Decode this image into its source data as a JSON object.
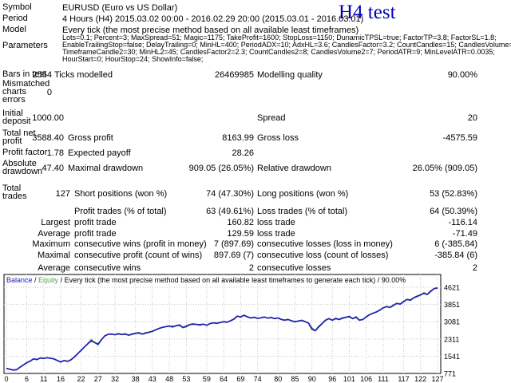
{
  "title": "H4 test",
  "header": {
    "symbol_label": "Symbol",
    "symbol": "EURUSD (Euro vs US Dollar)",
    "period_label": "Period",
    "period": "4 Hours (H4) 2015.03.02 00:00 - 2016.02.29 20:00 (2015.03.01 - 2016.03.01)",
    "model_label": "Model",
    "model": "Every tick (the most precise method based on all available least timeframes)",
    "parameters_label": "Parameters",
    "parameters_lines": [
      "Lots=0.1; Percent=3; MaxSpread=51; Magic=1175; TakeProfit=1600; StopLoss=1150; DunamicTPSL=true; FactorTP=3.8; FactorSL=1.8;",
      "EnableTrailingStop=false; DelayTrailing=0; MinHL=400; PeriodADX=10; AdxHL=3.6; CandlesFactor=3.2; CountCandles=15; CandlesVolume=7;",
      "TimeframeCandle2=30; MinHL2=45; CandlesFactor2=2.3; CountCandles2=8; CandlesVolume2=7; PeriodATR=9; MinLevelATR=0.0035;",
      "HourStart=0; HourStop=24; ShowInfo=false;"
    ]
  },
  "stats": {
    "bars": {
      "label": "Bars in test",
      "v1": "2554",
      "l2": "Ticks modelled",
      "v2": "26469985",
      "l3": "Modelling quality",
      "v3": "90.00%"
    },
    "mismatched": {
      "label": "Mismatched\ncharts\nerrors",
      "v1": "0"
    },
    "initial": {
      "label": "Initial\ndeposit",
      "v1": "1000.00",
      "l3": "Spread",
      "v3": "20"
    },
    "netprofit": {
      "label": "Total net\nprofit",
      "v1": "3588.40",
      "l2": "Gross profit",
      "v2": "8163.99",
      "l3": "Gross loss",
      "v3": "-4575.59"
    },
    "pfactor": {
      "label": "Profit factor",
      "v1": "1.78",
      "l2": "Expected payoff",
      "v2": "28.26"
    },
    "absdd": {
      "label": "Absolute\ndrawdown",
      "v1": "47.40",
      "l2": "Maximal drawdown",
      "v2": "909.05 (26.05%)",
      "l3": "Relative drawdown",
      "v3": "26.05% (909.05)"
    },
    "totaltrades": {
      "label": "Total\ntrades",
      "v1": "127",
      "l2": "Short positions (won %)",
      "v2": "74 (47.30%)",
      "l3": "Long positions (won %)",
      "v3": "53 (52.83%)"
    },
    "profittrades": {
      "l2": "Profit trades (% of total)",
      "v2": "63 (49.61%)",
      "l3": "Loss trades (% of total)",
      "v3": "64 (50.39%)"
    },
    "largest": {
      "v1": "Largest",
      "l2": "profit trade",
      "v2": "160.82",
      "l3": "loss trade",
      "v3": "-116.14"
    },
    "avg": {
      "v1": "Average",
      "l2": "profit trade",
      "v2": "129.59",
      "l3": "loss trade",
      "v3": "-71.49"
    },
    "maxwins": {
      "v1": "Maximum",
      "l2": "consecutive wins (profit in money)",
      "v2": "7 (897.69)",
      "l3": "consecutive losses (loss in money)",
      "v3": "6 (-385.84)"
    },
    "maxprofit": {
      "v1": "Maximal",
      "l2": "consecutive profit (count of wins)",
      "v2": "897.69 (7)",
      "l3": "consecutive loss (count of losses)",
      "v3": "-385.84 (6)"
    },
    "avgcons": {
      "v1": "Average",
      "l2": "consecutive wins",
      "v2": "2",
      "l3": "consecutive losses",
      "v3": "2"
    }
  },
  "chart_data": {
    "type": "line",
    "legend": {
      "balance": "Balance",
      "equity": "Equity",
      "rest": " / Every tick (the most precise method based on all available least timeframes to generate each tick) / 90.00%"
    },
    "x_axis": {
      "ticks": [
        0,
        6,
        11,
        16,
        22,
        27,
        32,
        38,
        43,
        48,
        53,
        59,
        64,
        69,
        74,
        80,
        85,
        90,
        96,
        101,
        106,
        111,
        117,
        122,
        127
      ],
      "range": [
        0,
        127
      ]
    },
    "y_axis": {
      "ticks": [
        771,
        1541,
        2311,
        3081,
        3851,
        4621
      ],
      "range": [
        700,
        5190
      ]
    },
    "colors": {
      "grid": "#c6c6c6",
      "border": "#000000",
      "background": "#ffffff"
    },
    "series": {
      "balance": {
        "name": "Balance",
        "color": "#2323b0",
        "values": [
          1000,
          960,
          920,
          940,
          1050,
          1150,
          1250,
          1320,
          1420,
          1390,
          1460,
          1440,
          1470,
          1450,
          1420,
          1350,
          1280,
          1350,
          1310,
          1380,
          1500,
          1650,
          1800,
          1950,
          2100,
          2230,
          2150,
          2080,
          2280,
          2450,
          2520,
          2530,
          2500,
          2540,
          2510,
          2540,
          2480,
          2520,
          2560,
          2590,
          2530,
          2570,
          2610,
          2650,
          2720,
          2780,
          2830,
          2860,
          2890,
          2850,
          2900,
          2940,
          2820,
          2870,
          2950,
          2980,
          2960,
          2940,
          2970,
          2920,
          3000,
          3030,
          3010,
          3050,
          3080,
          3060,
          3120,
          3200,
          3330,
          3290,
          3370,
          3300,
          3250,
          3280,
          3230,
          3260,
          3290,
          3240,
          3270,
          3220,
          3250,
          3180,
          3150,
          3180,
          3120,
          3080,
          3110,
          3140,
          3080,
          3020,
          2750,
          2680,
          2850,
          3000,
          3150,
          3220,
          3150,
          3220,
          3180,
          3250,
          3280,
          3310,
          3220,
          3280,
          3150,
          3180,
          3300,
          3400,
          3460,
          3520,
          3600,
          3700,
          3760,
          3720,
          3820,
          3900,
          3870,
          3980,
          4080,
          4040,
          4150,
          4220,
          4280,
          4350,
          4300,
          4450,
          4560,
          4588
        ]
      },
      "equity": {
        "name": "Equity",
        "color": "#4fa64f",
        "delta_from_balance": {
          "25": 60,
          "27": -40,
          "33": 25,
          "35": -30,
          "37": 30,
          "39": -25,
          "41": 25,
          "49": 35,
          "51": -30,
          "53": 40,
          "55": -25,
          "57": 25,
          "90": 60,
          "92": 40,
          "97": 30,
          "99": -25,
          "101": 25,
          "103": 30,
          "114": -30,
          "117": 25,
          "119": 30,
          "121": -25,
          "123": 30,
          "125": -35
        }
      }
    }
  }
}
